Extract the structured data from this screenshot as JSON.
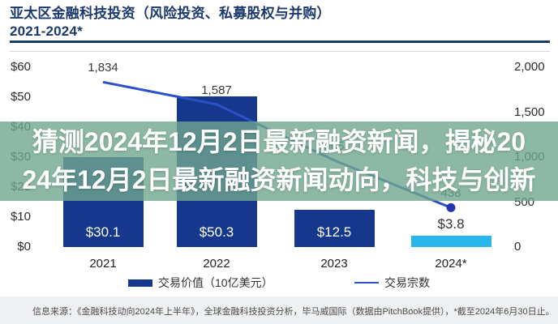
{
  "header": {
    "title_line1": "亚太区金融科技投资（风险投资、私募股权与并购）",
    "title_line2": "2021-2024*"
  },
  "overlay": {
    "line1": "猜测2024年12月2日最新融资新闻，揭秘20",
    "line2": "24年12月2日最新融资新闻动向，科技与创新",
    "background_color": "#6FA68F",
    "background_opacity": 0.8,
    "text_color": "#FFFFFF"
  },
  "chart_data": {
    "type": "combo_bar_line",
    "title": "亚太区金融科技投资（风险投资、私募股权与并购）2021-2024*",
    "categories": [
      "2021",
      "2022",
      "2023",
      "2024*"
    ],
    "series": [
      {
        "name": "交易价值（10亿美元）",
        "type": "bar",
        "values": [
          30.1,
          50.3,
          12.5,
          3.8
        ],
        "value_labels": [
          "$30.1",
          "$50.3",
          "$12.5",
          "$3.8"
        ],
        "bar_colors": [
          "#15388D",
          "#15388D",
          "#15388D",
          "#29B6EA"
        ]
      },
      {
        "name": "交易宗数",
        "type": "line",
        "values": [
          1834,
          1587,
          965,
          438
        ],
        "value_labels": [
          "1,834",
          "1,587",
          "965",
          "438"
        ],
        "line_color": "#2B50C8",
        "end_dot": true,
        "end_dot_color": "#2038B2"
      }
    ],
    "value_axis": {
      "side": "left",
      "range": [
        0,
        60
      ],
      "ticks": [
        {
          "label": "$60",
          "value": 60
        },
        {
          "label": "$50",
          "value": 50
        },
        {
          "label": "$40",
          "value": 40
        },
        {
          "label": "$30",
          "value": 30
        },
        {
          "label": "$20",
          "value": 20
        },
        {
          "label": "$10",
          "value": 10
        },
        {
          "label": "$0",
          "value": 0
        }
      ]
    },
    "count_axis": {
      "side": "right",
      "range": [
        0,
        2000
      ],
      "ticks": [
        {
          "label": "2,000",
          "value": 2000
        },
        {
          "label": "1,500",
          "value": 1500
        },
        {
          "label": "1,000",
          "value": 1000
        },
        {
          "label": "500",
          "value": 500
        },
        {
          "label": "0",
          "value": 0
        }
      ]
    },
    "grid": false,
    "legend_position": "bottom"
  },
  "footer": {
    "source_note": "信息来源：《金融科技动向2024年上半年》，全球金融科技投资分析，毕马威国际（数据由PitchBook提供），*截至2024年6月30日止。"
  }
}
